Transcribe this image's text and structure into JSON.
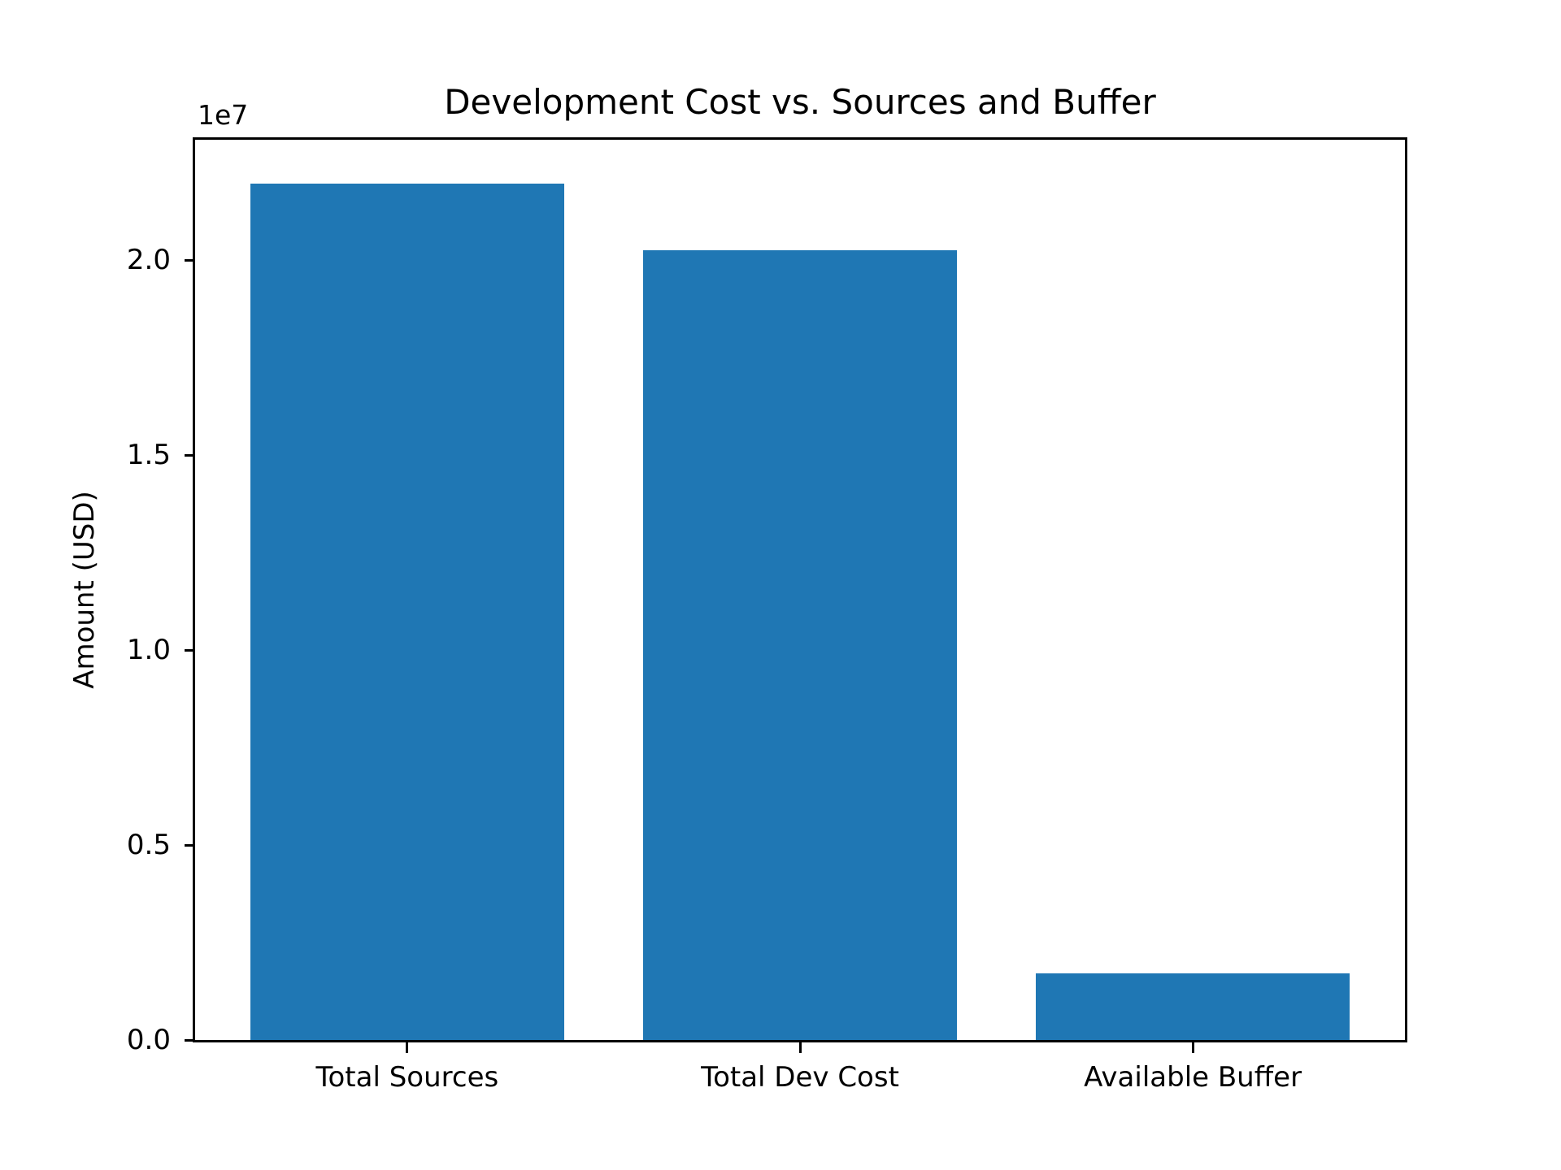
{
  "chart": {
    "background_color": "#ffffff",
    "text_color": "#000000"
  },
  "chart_data": {
    "type": "bar",
    "title": "Development Cost vs. Sources and Buffer",
    "xlabel": "",
    "ylabel": "Amount (USD)",
    "offset_text": "1e7",
    "categories": [
      "Total Sources",
      "Total Dev Cost",
      "Available Buffer"
    ],
    "values": [
      21950000,
      20250000,
      1700000
    ],
    "bar_color": "#1f77b4",
    "bar_width_fraction": 0.8,
    "ylim": [
      0,
      23083333
    ],
    "yticks": [
      0,
      5000000,
      10000000,
      15000000,
      20000000
    ],
    "ytick_labels": [
      "0.0",
      "0.5",
      "1.0",
      "1.5",
      "2.0"
    ],
    "grid": false,
    "legend": null
  }
}
